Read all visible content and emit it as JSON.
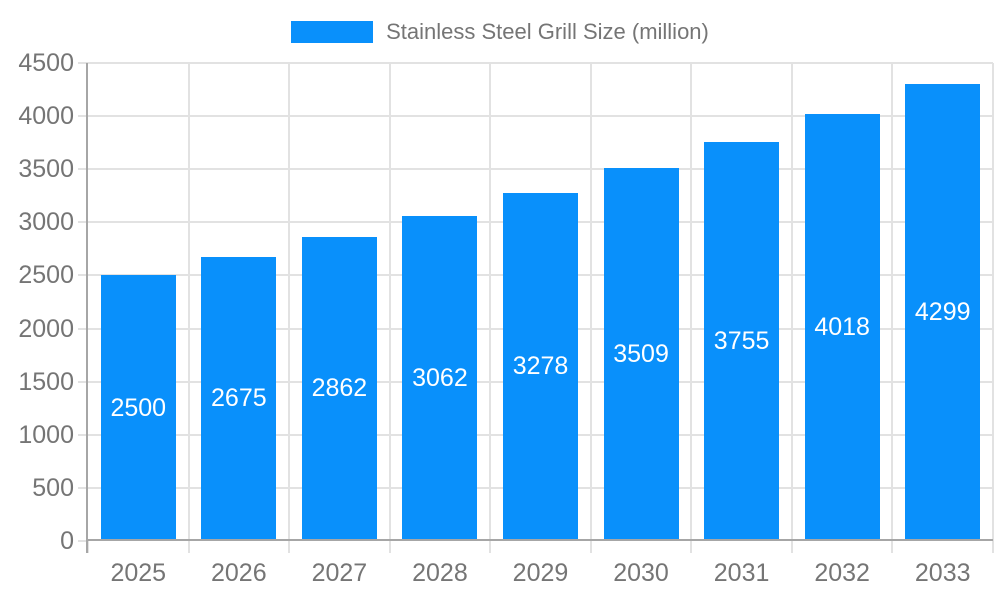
{
  "chart_data": {
    "type": "bar",
    "title": "Stainless Steel Grill Size (million)",
    "series_name": "Stainless Steel Grill Size (million)",
    "categories": [
      "2025",
      "2026",
      "2027",
      "2028",
      "2029",
      "2030",
      "2031",
      "2032",
      "2033"
    ],
    "values": [
      2500,
      2675,
      2862,
      3062,
      3278,
      3509,
      3755,
      4018,
      4299
    ],
    "xlabel": "",
    "ylabel": "",
    "ylim": [
      0,
      4500
    ],
    "ytick_step": 500,
    "yticks": [
      0,
      500,
      1000,
      1500,
      2000,
      2500,
      3000,
      3500,
      4000,
      4500
    ],
    "grid": true,
    "legend_position": "top",
    "bar_color": "#0990fb",
    "value_label_color": "#ffffff",
    "axis_label_color": "#757575",
    "grid_color": "#e2e2e2",
    "axis_line_color": "#a6a6a6",
    "background_color": "#ffffff"
  }
}
